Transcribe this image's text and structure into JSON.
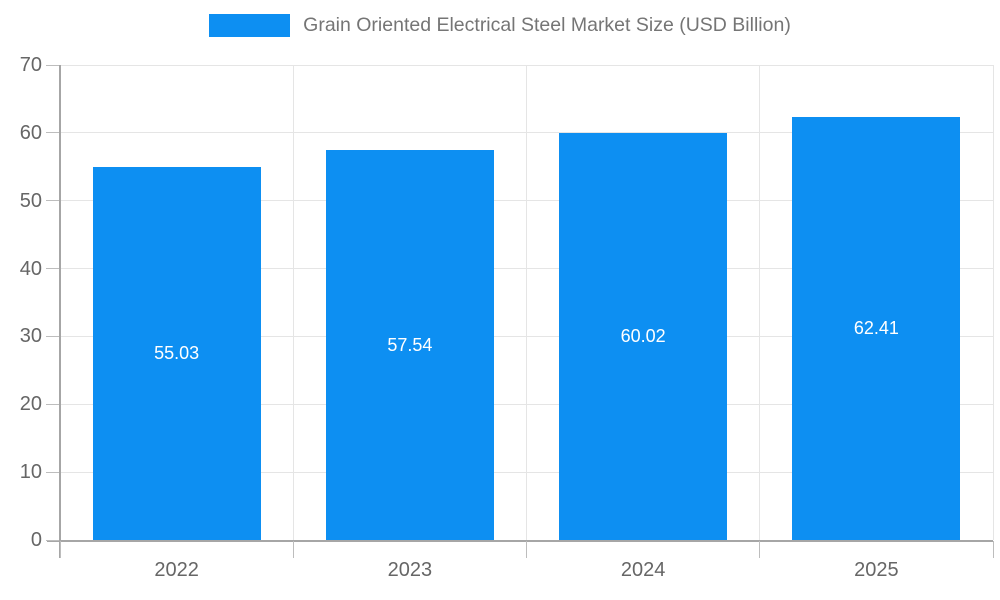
{
  "chart_data": {
    "type": "bar",
    "title": "Grain Oriented Electrical Steel Market Size (USD Billion)",
    "legend": [
      "Grain Oriented Electrical Steel Market Size (USD Billion)"
    ],
    "legend_position": "top",
    "categories": [
      "2022",
      "2023",
      "2024",
      "2025"
    ],
    "values": [
      55.03,
      57.54,
      60.02,
      62.41
    ],
    "value_labels": [
      "55.03",
      "57.54",
      "60.02",
      "62.41"
    ],
    "xlabel": "",
    "ylabel": "",
    "ylim": [
      0,
      70
    ],
    "yticks": [
      0,
      10,
      20,
      30,
      40,
      50,
      60,
      70
    ],
    "grid": true,
    "bar_color": "#0d8ff2",
    "value_label_color": "#ffffff"
  },
  "style": {
    "background": "#ffffff",
    "grid_color": "#e5e5e5",
    "axis_color": "#a6a6a6",
    "tick_color": "#bdbdbd",
    "axis_label_color": "#666666",
    "title_color": "#757575"
  }
}
